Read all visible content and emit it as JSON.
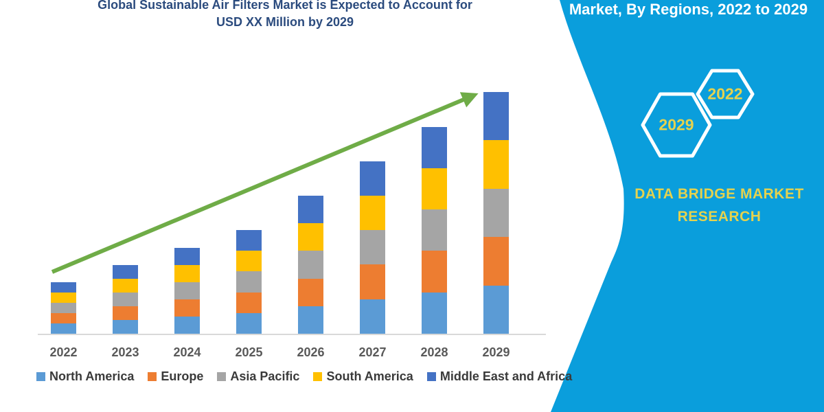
{
  "title": {
    "line1": "Global Sustainable Air Filters Market is Expected to Account for",
    "line2": "USD XX Million by 2029"
  },
  "side_panel": {
    "heading": "Market, By Regions, 2022 to 2029",
    "hexagons": [
      {
        "label": "2029"
      },
      {
        "label": "2022"
      }
    ],
    "brand_line1": "DATA BRIDGE MARKET",
    "brand_line2": "RESEARCH",
    "background_color": "#0A9EDC",
    "accent_text_color": "#E5D24E"
  },
  "chart_data": {
    "type": "bar",
    "stacked": true,
    "title": "Global Sustainable Air Filters Market is Expected to Account for USD XX Million by 2029",
    "categories": [
      "2022",
      "2023",
      "2024",
      "2025",
      "2026",
      "2027",
      "2028",
      "2029"
    ],
    "series": [
      {
        "name": "North America",
        "color": "#5B9BD5",
        "values": [
          15,
          20,
          25,
          30,
          40,
          50,
          60,
          70
        ]
      },
      {
        "name": "Europe",
        "color": "#ED7D31",
        "values": [
          15,
          20,
          25,
          30,
          40,
          50,
          60,
          70
        ]
      },
      {
        "name": "Asia Pacific",
        "color": "#A5A5A5",
        "values": [
          15,
          20,
          25,
          30,
          40,
          50,
          60,
          70
        ]
      },
      {
        "name": "South America",
        "color": "#FFC000",
        "values": [
          15,
          20,
          25,
          30,
          40,
          50,
          60,
          70
        ]
      },
      {
        "name": "Middle East and Africa",
        "color": "#4472C4",
        "values": [
          15,
          20,
          25,
          30,
          40,
          50,
          60,
          70
        ]
      }
    ],
    "totals": [
      75,
      100,
      125,
      150,
      200,
      250,
      300,
      350
    ],
    "xlabel": "",
    "ylabel": "",
    "y_axis_visible": false,
    "grid": false,
    "legend_position": "bottom",
    "trend_arrow": true,
    "trend_arrow_color": "#6FAC47",
    "note": "No value axis shown; values are relative units estimated from bar heights (equal regional split per year)."
  }
}
